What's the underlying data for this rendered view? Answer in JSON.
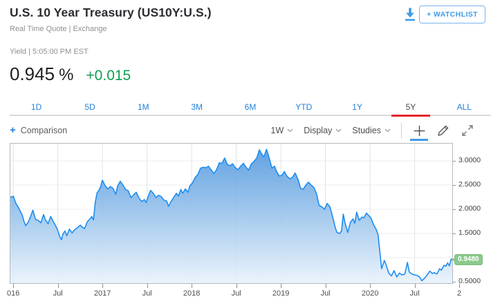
{
  "header": {
    "title": "U.S. 10 Year Treasury (US10Y:U.S.)",
    "subtitle": "Real Time Quote | Exchange",
    "watchlist_label": "+ WATCHLIST"
  },
  "quote": {
    "meta": "Yield | 5:05:00 PM EST",
    "value": "0.945",
    "unit": "%",
    "change": "+0.015",
    "change_color": "#0f9e52"
  },
  "range_tabs": {
    "items": [
      "1D",
      "5D",
      "1M",
      "3M",
      "6M",
      "YTD",
      "1Y",
      "5Y",
      "ALL"
    ],
    "selected": "5Y",
    "selected_underline_color": "#e5242a"
  },
  "toolbar": {
    "comparison_label": "Comparison",
    "interval_value": "1W",
    "display_label": "Display",
    "studies_label": "Studies",
    "active_tool": "crosshair"
  },
  "chart_data": {
    "type": "area",
    "title": "U.S. 10 Year Treasury yield, 5 year range, weekly",
    "xlabel": "",
    "ylabel": "Yield %",
    "legend": "none",
    "grid": true,
    "line_color": "#1d8df0",
    "fill_top_color": "#4d96dd",
    "fill_top_opacity": 0.88,
    "fill_bottom_color": "#eaf3fb",
    "fill_bottom_opacity": 0.9,
    "last_price_label": "0.9480",
    "last_point": {
      "t": 2020.93,
      "v": 0.948
    },
    "t_domain": [
      2015.96,
      2020.93
    ],
    "v_domain": [
      0.457,
      3.371
    ],
    "y_gridlines": [
      3.0,
      2.5,
      2.0,
      1.5,
      1.0,
      0.5
    ],
    "y_ticks": [
      {
        "v": 3.0,
        "label": "3.0000"
      },
      {
        "v": 2.5,
        "label": "2.5000"
      },
      {
        "v": 2.0,
        "label": "2.0000"
      },
      {
        "v": 1.5,
        "label": "1.5000"
      },
      {
        "v": 0.5,
        "label": "0.5000"
      }
    ],
    "x_ticks": [
      {
        "t": 2016.0,
        "label": "016"
      },
      {
        "t": 2016.5,
        "label": "Jul"
      },
      {
        "t": 2017.0,
        "label": "2017"
      },
      {
        "t": 2017.5,
        "label": "Jul"
      },
      {
        "t": 2018.0,
        "label": "2018"
      },
      {
        "t": 2018.5,
        "label": "Jul"
      },
      {
        "t": 2019.0,
        "label": "2019"
      },
      {
        "t": 2019.5,
        "label": "Jul"
      },
      {
        "t": 2020.0,
        "label": "2020"
      },
      {
        "t": 2020.5,
        "label": "Jul"
      },
      {
        "t": 2021.0,
        "label": "2"
      }
    ],
    "series": [
      [
        2015.96,
        2.24
      ],
      [
        2016.0,
        2.27
      ],
      [
        2016.03,
        2.12
      ],
      [
        2016.06,
        2.03
      ],
      [
        2016.1,
        1.88
      ],
      [
        2016.12,
        1.75
      ],
      [
        2016.14,
        1.66
      ],
      [
        2016.17,
        1.74
      ],
      [
        2016.2,
        1.88
      ],
      [
        2016.22,
        1.98
      ],
      [
        2016.25,
        1.79
      ],
      [
        2016.28,
        1.77
      ],
      [
        2016.31,
        1.72
      ],
      [
        2016.34,
        1.89
      ],
      [
        2016.36,
        1.78
      ],
      [
        2016.39,
        1.7
      ],
      [
        2016.42,
        1.85
      ],
      [
        2016.45,
        1.74
      ],
      [
        2016.48,
        1.64
      ],
      [
        2016.5,
        1.56
      ],
      [
        2016.52,
        1.44
      ],
      [
        2016.54,
        1.37
      ],
      [
        2016.56,
        1.5
      ],
      [
        2016.58,
        1.55
      ],
      [
        2016.6,
        1.45
      ],
      [
        2016.63,
        1.59
      ],
      [
        2016.66,
        1.51
      ],
      [
        2016.69,
        1.58
      ],
      [
        2016.72,
        1.62
      ],
      [
        2016.75,
        1.67
      ],
      [
        2016.78,
        1.62
      ],
      [
        2016.8,
        1.6
      ],
      [
        2016.83,
        1.74
      ],
      [
        2016.86,
        1.8
      ],
      [
        2016.88,
        1.85
      ],
      [
        2016.9,
        1.78
      ],
      [
        2016.92,
        2.15
      ],
      [
        2016.94,
        2.34
      ],
      [
        2016.96,
        2.39
      ],
      [
        2016.98,
        2.47
      ],
      [
        2017.0,
        2.6
      ],
      [
        2017.03,
        2.49
      ],
      [
        2017.06,
        2.42
      ],
      [
        2017.09,
        2.47
      ],
      [
        2017.12,
        2.43
      ],
      [
        2017.15,
        2.31
      ],
      [
        2017.17,
        2.48
      ],
      [
        2017.2,
        2.58
      ],
      [
        2017.23,
        2.5
      ],
      [
        2017.26,
        2.41
      ],
      [
        2017.29,
        2.38
      ],
      [
        2017.32,
        2.24
      ],
      [
        2017.35,
        2.3
      ],
      [
        2017.38,
        2.35
      ],
      [
        2017.41,
        2.23
      ],
      [
        2017.44,
        2.16
      ],
      [
        2017.47,
        2.2
      ],
      [
        2017.49,
        2.14
      ],
      [
        2017.52,
        2.3
      ],
      [
        2017.54,
        2.39
      ],
      [
        2017.57,
        2.33
      ],
      [
        2017.6,
        2.24
      ],
      [
        2017.63,
        2.29
      ],
      [
        2017.66,
        2.26
      ],
      [
        2017.69,
        2.19
      ],
      [
        2017.72,
        2.17
      ],
      [
        2017.74,
        2.06
      ],
      [
        2017.77,
        2.16
      ],
      [
        2017.8,
        2.25
      ],
      [
        2017.83,
        2.33
      ],
      [
        2017.85,
        2.27
      ],
      [
        2017.88,
        2.41
      ],
      [
        2017.9,
        2.33
      ],
      [
        2017.93,
        2.42
      ],
      [
        2017.96,
        2.35
      ],
      [
        2017.98,
        2.48
      ],
      [
        2018.01,
        2.55
      ],
      [
        2018.04,
        2.66
      ],
      [
        2018.07,
        2.72
      ],
      [
        2018.1,
        2.85
      ],
      [
        2018.13,
        2.87
      ],
      [
        2018.16,
        2.86
      ],
      [
        2018.19,
        2.89
      ],
      [
        2018.22,
        2.81
      ],
      [
        2018.25,
        2.74
      ],
      [
        2018.28,
        2.82
      ],
      [
        2018.31,
        2.96
      ],
      [
        2018.34,
        2.95
      ],
      [
        2018.37,
        3.06
      ],
      [
        2018.4,
        2.93
      ],
      [
        2018.43,
        2.9
      ],
      [
        2018.46,
        2.94
      ],
      [
        2018.49,
        2.86
      ],
      [
        2018.52,
        2.82
      ],
      [
        2018.55,
        2.89
      ],
      [
        2018.58,
        2.95
      ],
      [
        2018.61,
        2.87
      ],
      [
        2018.64,
        2.81
      ],
      [
        2018.67,
        2.94
      ],
      [
        2018.7,
        2.99
      ],
      [
        2018.73,
        3.06
      ],
      [
        2018.76,
        3.23
      ],
      [
        2018.78,
        3.16
      ],
      [
        2018.81,
        3.08
      ],
      [
        2018.84,
        3.24
      ],
      [
        2018.87,
        3.06
      ],
      [
        2018.9,
        2.85
      ],
      [
        2018.93,
        2.89
      ],
      [
        2018.95,
        2.79
      ],
      [
        2018.98,
        2.69
      ],
      [
        2019.01,
        2.7
      ],
      [
        2019.04,
        2.78
      ],
      [
        2019.07,
        2.68
      ],
      [
        2019.1,
        2.63
      ],
      [
        2019.13,
        2.66
      ],
      [
        2019.16,
        2.75
      ],
      [
        2019.19,
        2.63
      ],
      [
        2019.22,
        2.44
      ],
      [
        2019.25,
        2.41
      ],
      [
        2019.28,
        2.5
      ],
      [
        2019.31,
        2.56
      ],
      [
        2019.34,
        2.5
      ],
      [
        2019.37,
        2.45
      ],
      [
        2019.4,
        2.32
      ],
      [
        2019.43,
        2.08
      ],
      [
        2019.46,
        2.05
      ],
      [
        2019.49,
        2.0
      ],
      [
        2019.52,
        2.12
      ],
      [
        2019.55,
        2.05
      ],
      [
        2019.58,
        1.85
      ],
      [
        2019.61,
        1.62
      ],
      [
        2019.63,
        1.52
      ],
      [
        2019.66,
        1.5
      ],
      [
        2019.68,
        1.55
      ],
      [
        2019.7,
        1.9
      ],
      [
        2019.72,
        1.72
      ],
      [
        2019.75,
        1.52
      ],
      [
        2019.78,
        1.73
      ],
      [
        2019.81,
        1.8
      ],
      [
        2019.83,
        1.71
      ],
      [
        2019.85,
        1.94
      ],
      [
        2019.88,
        1.77
      ],
      [
        2019.91,
        1.84
      ],
      [
        2019.93,
        1.82
      ],
      [
        2019.96,
        1.92
      ],
      [
        2019.98,
        1.88
      ],
      [
        2020.01,
        1.82
      ],
      [
        2020.04,
        1.68
      ],
      [
        2020.07,
        1.58
      ],
      [
        2020.09,
        1.47
      ],
      [
        2020.11,
        1.13
      ],
      [
        2020.13,
        0.77
      ],
      [
        2020.16,
        0.94
      ],
      [
        2020.18,
        0.85
      ],
      [
        2020.21,
        0.68
      ],
      [
        2020.24,
        0.62
      ],
      [
        2020.27,
        0.73
      ],
      [
        2020.3,
        0.6
      ],
      [
        2020.33,
        0.68
      ],
      [
        2020.36,
        0.64
      ],
      [
        2020.39,
        0.66
      ],
      [
        2020.42,
        0.9
      ],
      [
        2020.44,
        0.7
      ],
      [
        2020.47,
        0.66
      ],
      [
        2020.5,
        0.64
      ],
      [
        2020.53,
        0.63
      ],
      [
        2020.56,
        0.59
      ],
      [
        2020.58,
        0.52
      ],
      [
        2020.61,
        0.57
      ],
      [
        2020.64,
        0.64
      ],
      [
        2020.67,
        0.72
      ],
      [
        2020.7,
        0.67
      ],
      [
        2020.72,
        0.69
      ],
      [
        2020.75,
        0.66
      ],
      [
        2020.78,
        0.77
      ],
      [
        2020.8,
        0.74
      ],
      [
        2020.83,
        0.84
      ],
      [
        2020.85,
        0.82
      ],
      [
        2020.87,
        0.89
      ],
      [
        2020.89,
        0.83
      ],
      [
        2020.91,
        0.97
      ],
      [
        2020.93,
        0.948
      ]
    ]
  }
}
